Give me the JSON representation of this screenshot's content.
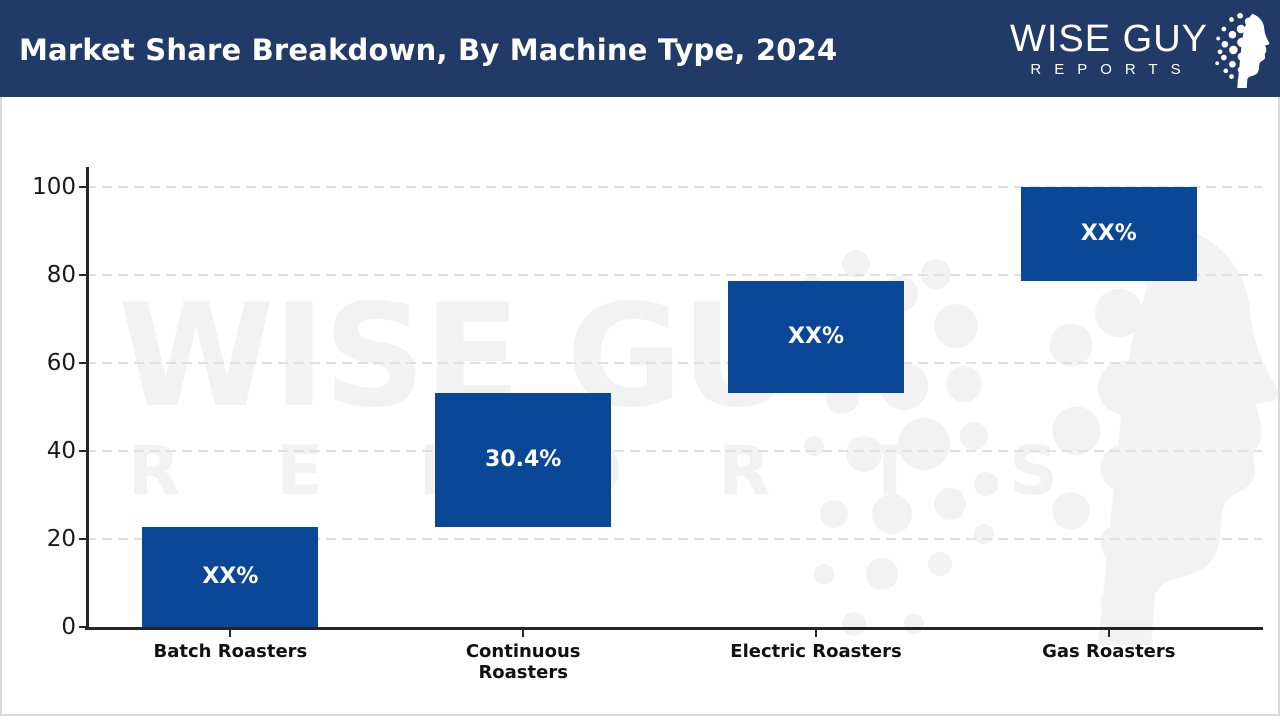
{
  "header": {
    "title": "Market Share Breakdown, By Machine Type, 2024",
    "background_color": "#223a67"
  },
  "logo": {
    "line1": "WISE GUY",
    "line2": "REPORTS"
  },
  "watermark": {
    "line1": "WISE GUY",
    "line2": "REPORTS"
  },
  "chart_data": {
    "type": "bar",
    "subtype": "waterfall",
    "title": "Market Share Breakdown, By Machine Type, 2024",
    "categories": [
      "Batch Roasters",
      "Continuous Roasters",
      "Electric Roasters",
      "Gas Roasters"
    ],
    "category_label_lines": [
      [
        "Batch Roasters"
      ],
      [
        "Continuous",
        "Roasters"
      ],
      [
        "Electric Roasters"
      ],
      [
        "Gas Roasters"
      ]
    ],
    "segments": [
      {
        "category": "Batch Roasters",
        "start": 0,
        "end": 22.8,
        "label": "XX%"
      },
      {
        "category": "Continuous Roasters",
        "start": 22.8,
        "end": 53.2,
        "label": "30.4%"
      },
      {
        "category": "Electric Roasters",
        "start": 53.2,
        "end": 78.6,
        "label": "XX%"
      },
      {
        "category": "Gas Roasters",
        "start": 78.6,
        "end": 100,
        "label": "XX%"
      }
    ],
    "xlabel": "",
    "ylabel": "",
    "ylim": [
      0,
      100
    ],
    "yticks": [
      0,
      20,
      40,
      60,
      80,
      100
    ],
    "grid": "horizontal-dashed",
    "legend": "none",
    "bar_color": "#0b4797",
    "bar_label_color": "#ffffff",
    "grid_color": "#e0e0e0",
    "axis_color": "#262626",
    "tick_label_color": "#1a1a1a"
  }
}
